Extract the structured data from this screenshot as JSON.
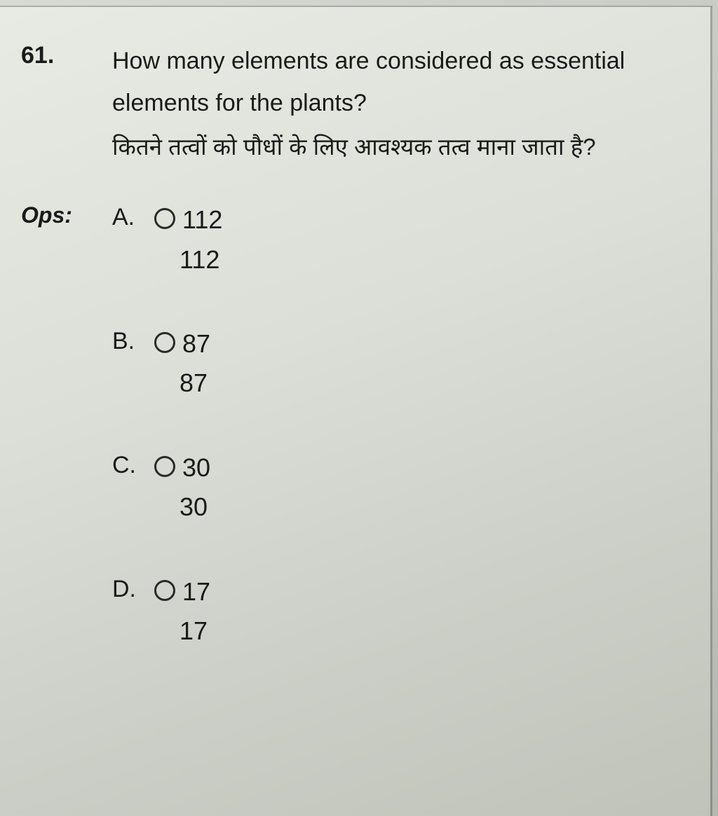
{
  "question": {
    "number": "61.",
    "text_en_line1": "How many elements are considered as essential",
    "text_en_line2": "elements for the plants?",
    "text_hi": "कितने तत्वों को पौधों के लिए आवश्यक तत्व माना जाता है?"
  },
  "ops_label": "Ops:",
  "options": [
    {
      "letter": "A.",
      "value1": "112",
      "value2": "112"
    },
    {
      "letter": "B.",
      "value1": "87",
      "value2": "87"
    },
    {
      "letter": "C.",
      "value1": "30",
      "value2": "30"
    },
    {
      "letter": "D.",
      "value1": "17",
      "value2": "17"
    }
  ],
  "colors": {
    "text": "#1a1a1a",
    "radio_border": "#2a2a2a",
    "page_bg_top": "#e8eae4",
    "page_bg_bottom": "#c0c3ba"
  },
  "typography": {
    "question_fontsize": 34,
    "option_fontsize": 36,
    "ops_fontsize": 32
  }
}
